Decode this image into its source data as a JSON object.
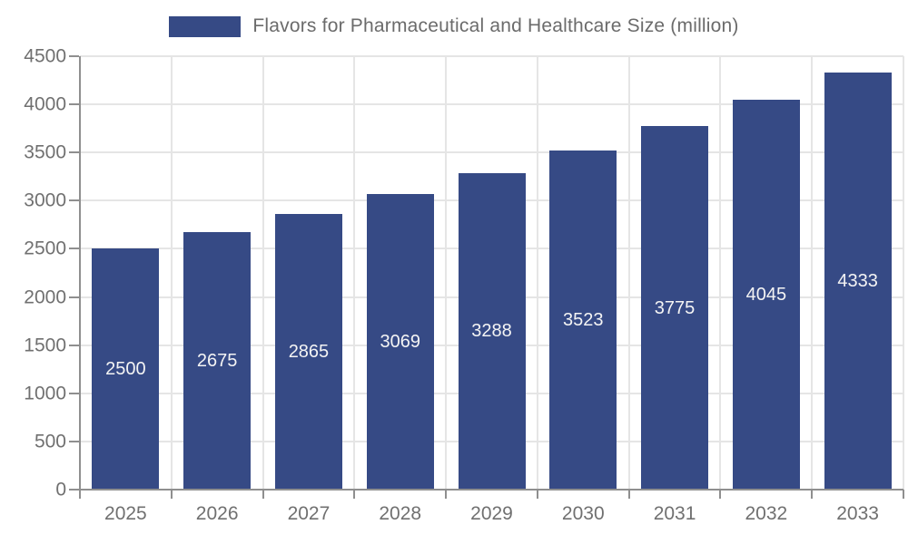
{
  "legend": {
    "label": "Flavors for Pharmaceutical and Healthcare Size (million)",
    "swatch_color": "#364A85"
  },
  "chart_data": {
    "type": "bar",
    "title": "Flavors for Pharmaceutical and Healthcare Size (million)",
    "categories": [
      "2025",
      "2026",
      "2027",
      "2028",
      "2029",
      "2030",
      "2031",
      "2032",
      "2033"
    ],
    "values": [
      2500,
      2675,
      2865,
      3069,
      3288,
      3523,
      3775,
      4045,
      4333
    ],
    "xlabel": "",
    "ylabel": "",
    "ylim": [
      0,
      4500
    ],
    "yticks": [
      0,
      500,
      1000,
      1500,
      2000,
      2500,
      3000,
      3500,
      4000,
      4500
    ],
    "grid": true,
    "legend_position": "top-center",
    "bar_color": "#364A85",
    "value_label_color": "#F4F4F4",
    "axis_text_color": "#707070",
    "grid_color": "#E5E5E5",
    "axis_line_color": "#8F8F8F"
  }
}
